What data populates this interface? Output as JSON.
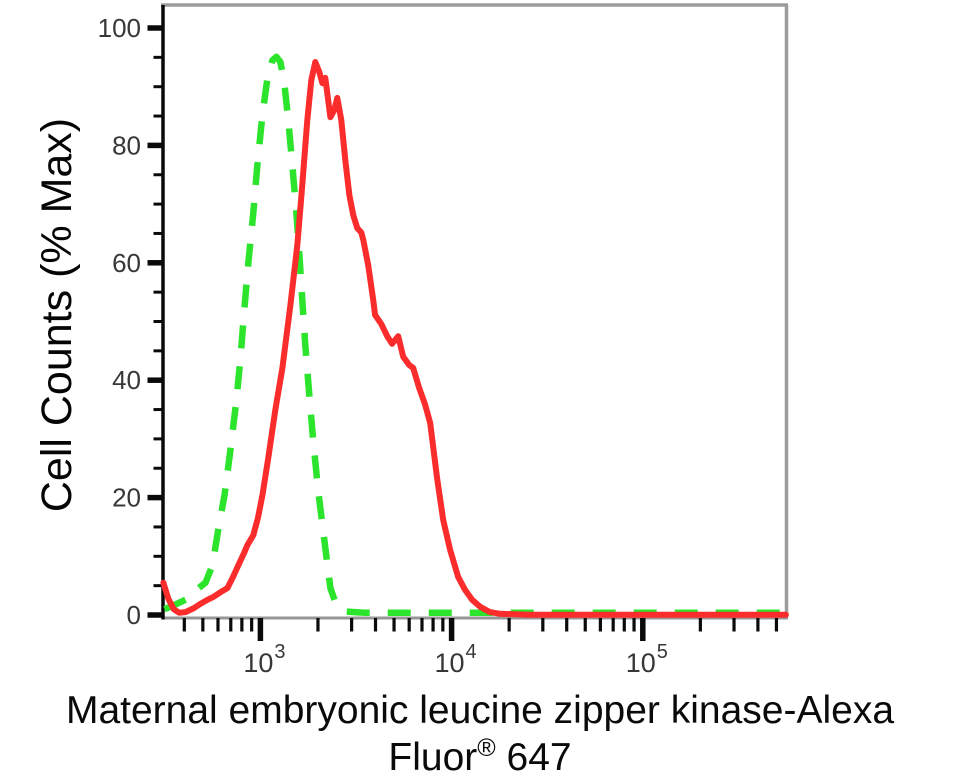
{
  "figure": {
    "y_axis_label": "Cell Counts (% Max)",
    "x_title_line1": "Maternal embryonic leucine zipper kinase-Alexa",
    "x_title_line2_prefix": "Fluor",
    "x_title_line2_reg": "®",
    "x_title_line2_suffix": " 647"
  },
  "chart_data": {
    "type": "line",
    "subtype": "flow-cytometry-overlay-histogram",
    "title": "",
    "xlabel": "Maternal embryonic leucine zipper kinase-Alexa Fluor® 647",
    "ylabel": "Cell Counts (% Max)",
    "x_scale": "log10",
    "xlim": [
      310,
      560000
    ],
    "ylim": [
      0,
      104
    ],
    "grid": false,
    "legend": null,
    "axis_colors": {
      "left_axis": "#0a0a0a",
      "bottom_axis": "#969696",
      "box_border": "#9c9c9c",
      "tick": "#0a0a0a",
      "tick_label": "#373737"
    },
    "y_axis": {
      "major_ticks": [
        0,
        20,
        40,
        60,
        80,
        100
      ],
      "minor_step": 5
    },
    "x_axis": {
      "major_ticks": [
        {
          "value": 1000,
          "mantissa": "10",
          "exponent": "3"
        },
        {
          "value": 10000,
          "mantissa": "10",
          "exponent": "4"
        },
        {
          "value": 100000,
          "mantissa": "10",
          "exponent": "5"
        }
      ],
      "minor_ticks": "log-decades 2-9 per decade"
    },
    "series": [
      {
        "name": "green-dashed-histogram",
        "style": "dashed",
        "color": "#2be42b",
        "points": [
          [
            315,
            1.0
          ],
          [
            338,
            1.4
          ],
          [
            360,
            1.8
          ],
          [
            406,
            2.6
          ],
          [
            460,
            4.2
          ],
          [
            516,
            5.5
          ],
          [
            562,
            8.5
          ],
          [
            604,
            14.8
          ],
          [
            649,
            20.4
          ],
          [
            697,
            28.1
          ],
          [
            749,
            36.6
          ],
          [
            787,
            43.8
          ],
          [
            824,
            52.0
          ],
          [
            865,
            60.1
          ],
          [
            918,
            68.5
          ],
          [
            964,
            76.7
          ],
          [
            1024,
            85.2
          ],
          [
            1089,
            91.5
          ],
          [
            1156,
            94.5
          ],
          [
            1213,
            95.1
          ],
          [
            1272,
            94.2
          ],
          [
            1334,
            90.6
          ],
          [
            1400,
            84.3
          ],
          [
            1469,
            76.7
          ],
          [
            1542,
            68.5
          ],
          [
            1599,
            61.3
          ],
          [
            1657,
            53.7
          ],
          [
            1718,
            46.0
          ],
          [
            1803,
            37.5
          ],
          [
            1892,
            29.5
          ],
          [
            2009,
            21.0
          ],
          [
            2158,
            12.8
          ],
          [
            2322,
            4.6
          ],
          [
            2495,
            1.7
          ],
          [
            2779,
            0.6
          ],
          [
            3500,
            0.4
          ],
          [
            8000,
            0.4
          ],
          [
            20000,
            0.4
          ],
          [
            60000,
            0.4
          ],
          [
            150000,
            0.4
          ],
          [
            350000,
            0.4
          ],
          [
            545000,
            0.4
          ]
        ]
      },
      {
        "name": "red-solid-histogram",
        "style": "solid",
        "color": "#fb2c2c",
        "points": [
          [
            311,
            5.5
          ],
          [
            330,
            2.8
          ],
          [
            352,
            1.0
          ],
          [
            375,
            0.4
          ],
          [
            406,
            0.5
          ],
          [
            450,
            1.2
          ],
          [
            486,
            1.9
          ],
          [
            530,
            2.6
          ],
          [
            569,
            3.1
          ],
          [
            620,
            3.9
          ],
          [
            673,
            4.6
          ],
          [
            720,
            6.5
          ],
          [
            767,
            8.5
          ],
          [
            820,
            10.5
          ],
          [
            855,
            11.9
          ],
          [
            918,
            13.6
          ],
          [
            970,
            16.5
          ],
          [
            1024,
            20.4
          ],
          [
            1101,
            26.9
          ],
          [
            1197,
            34.9
          ],
          [
            1303,
            42.1
          ],
          [
            1435,
            52.8
          ],
          [
            1560,
            63.0
          ],
          [
            1657,
            73.3
          ],
          [
            1759,
            84.3
          ],
          [
            1846,
            91.1
          ],
          [
            1937,
            94.2
          ],
          [
            2033,
            92.5
          ],
          [
            2109,
            90.6
          ],
          [
            2184,
            91.5
          ],
          [
            2322,
            84.8
          ],
          [
            2433,
            86.0
          ],
          [
            2524,
            88.1
          ],
          [
            2649,
            84.3
          ],
          [
            2779,
            77.5
          ],
          [
            2917,
            71.6
          ],
          [
            3061,
            68.1
          ],
          [
            3212,
            65.9
          ],
          [
            3367,
            65.2
          ],
          [
            3451,
            63.9
          ],
          [
            3664,
            59.6
          ],
          [
            3890,
            53.7
          ],
          [
            3981,
            51.1
          ],
          [
            4285,
            49.6
          ],
          [
            4603,
            47.5
          ],
          [
            4887,
            46.2
          ],
          [
            5258,
            47.5
          ],
          [
            5581,
            44.0
          ],
          [
            5996,
            42.6
          ],
          [
            6295,
            42.1
          ],
          [
            6761,
            38.7
          ],
          [
            7278,
            35.8
          ],
          [
            7727,
            32.7
          ],
          [
            8395,
            23.3
          ],
          [
            9036,
            16.2
          ],
          [
            9817,
            11.1
          ],
          [
            10814,
            6.5
          ],
          [
            11749,
            4.3
          ],
          [
            12794,
            2.6
          ],
          [
            14093,
            1.4
          ],
          [
            15885,
            0.5
          ],
          [
            17906,
            0.2
          ],
          [
            25000,
            0.05
          ],
          [
            60000,
            0.05
          ],
          [
            150000,
            0.05
          ],
          [
            350000,
            0.05
          ],
          [
            560000,
            0.05
          ]
        ]
      }
    ]
  }
}
